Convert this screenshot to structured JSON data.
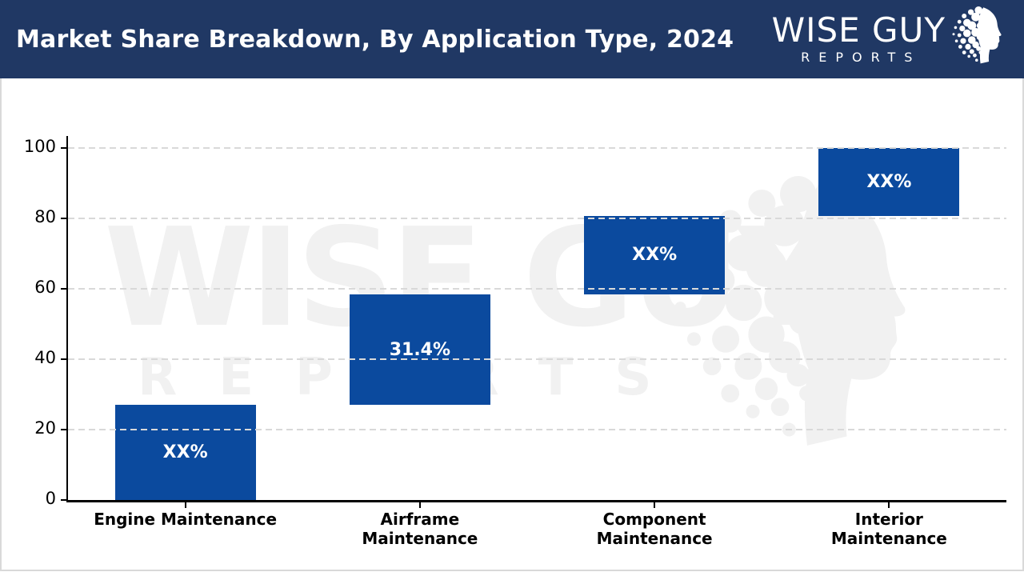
{
  "header": {
    "title": "Market Share Breakdown, By Application Type, 2024",
    "bg_color": "#203864",
    "logo": {
      "wordmark": "WISE GUY",
      "subtitle": "REPORTS",
      "head_icon": "wise-guy-head-icon"
    }
  },
  "watermark": {
    "wordmark": "WISE GUY",
    "subtitle": "REPORTS",
    "color": "#f1f1f1",
    "head_icon": "wise-guy-head-icon"
  },
  "chart_data": {
    "type": "bar",
    "subtype": "waterfall",
    "title": "Market Share Breakdown, By Application Type, 2024",
    "categories": [
      "Engine Maintenance",
      "Airframe Maintenance",
      "Component Maintenance",
      "Interior Maintenance"
    ],
    "bars": [
      {
        "category": "Engine Maintenance",
        "category_lines": [
          "Engine Maintenance"
        ],
        "start": 0,
        "end": 27.0,
        "height": 27.0,
        "value_label": "XX%"
      },
      {
        "category": "Airframe Maintenance",
        "category_lines": [
          "Airframe",
          "Maintenance"
        ],
        "start": 27.0,
        "end": 58.4,
        "height": 31.4,
        "value_label": "31.4%"
      },
      {
        "category": "Component Maintenance",
        "category_lines": [
          "Component",
          "Maintenance"
        ],
        "start": 58.4,
        "end": 80.7,
        "height": 22.3,
        "value_label": "XX%"
      },
      {
        "category": "Interior Maintenance",
        "category_lines": [
          "Interior",
          "Maintenance"
        ],
        "start": 80.7,
        "end": 100,
        "height": 19.3,
        "value_label": "XX%"
      }
    ],
    "yticks": [
      0,
      20,
      40,
      60,
      80,
      100
    ],
    "ytick_labels": [
      "0",
      "20",
      "40",
      "60",
      "80",
      "100"
    ],
    "ylim": [
      0,
      100
    ],
    "grid": true,
    "legend": false,
    "bar_color": "#0b4a9e",
    "grid_color": "#d9d9d9",
    "axis_color": "#000000",
    "value_label_color": "#ffffff"
  }
}
